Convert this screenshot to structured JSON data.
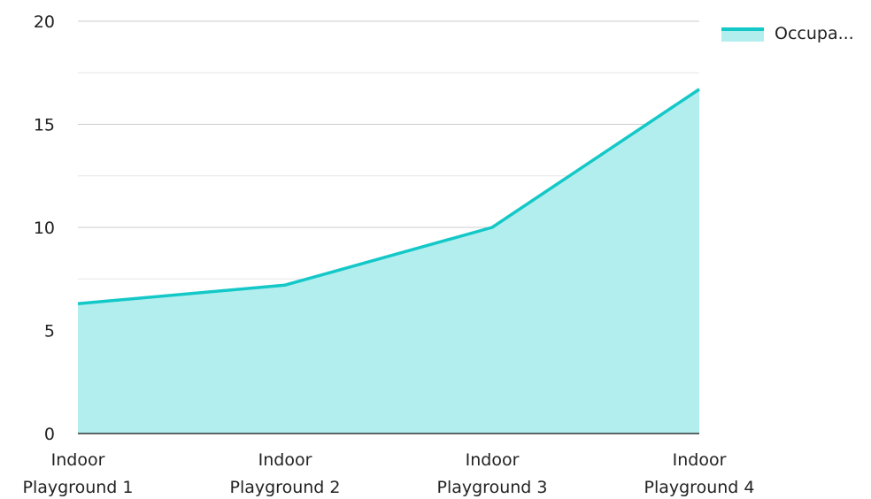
{
  "chart_data": {
    "type": "area",
    "categories": [
      [
        "Indoor",
        "Playground 1"
      ],
      [
        "Indoor",
        "Playground 2"
      ],
      [
        "Indoor",
        "Playground 3"
      ],
      [
        "Indoor",
        "Playground 4"
      ]
    ],
    "series": [
      {
        "name": "Occupa...",
        "values": [
          6.3,
          7.2,
          10,
          16.7
        ]
      }
    ],
    "ylim": [
      0,
      20
    ],
    "yticks": [
      0,
      5,
      10,
      15,
      20
    ],
    "ytick_labels": [
      "0",
      "5",
      "10",
      "15",
      "20"
    ],
    "minor_gridlines": [
      2.5,
      7.5,
      12.5,
      17.5
    ],
    "grid": true,
    "legend_position": "top-right",
    "colors": {
      "line": "#14c8c8",
      "fill": "#b2eeee",
      "major_grid": "#cccccc",
      "minor_grid": "#e6e6e6",
      "axis": "#333333"
    }
  }
}
